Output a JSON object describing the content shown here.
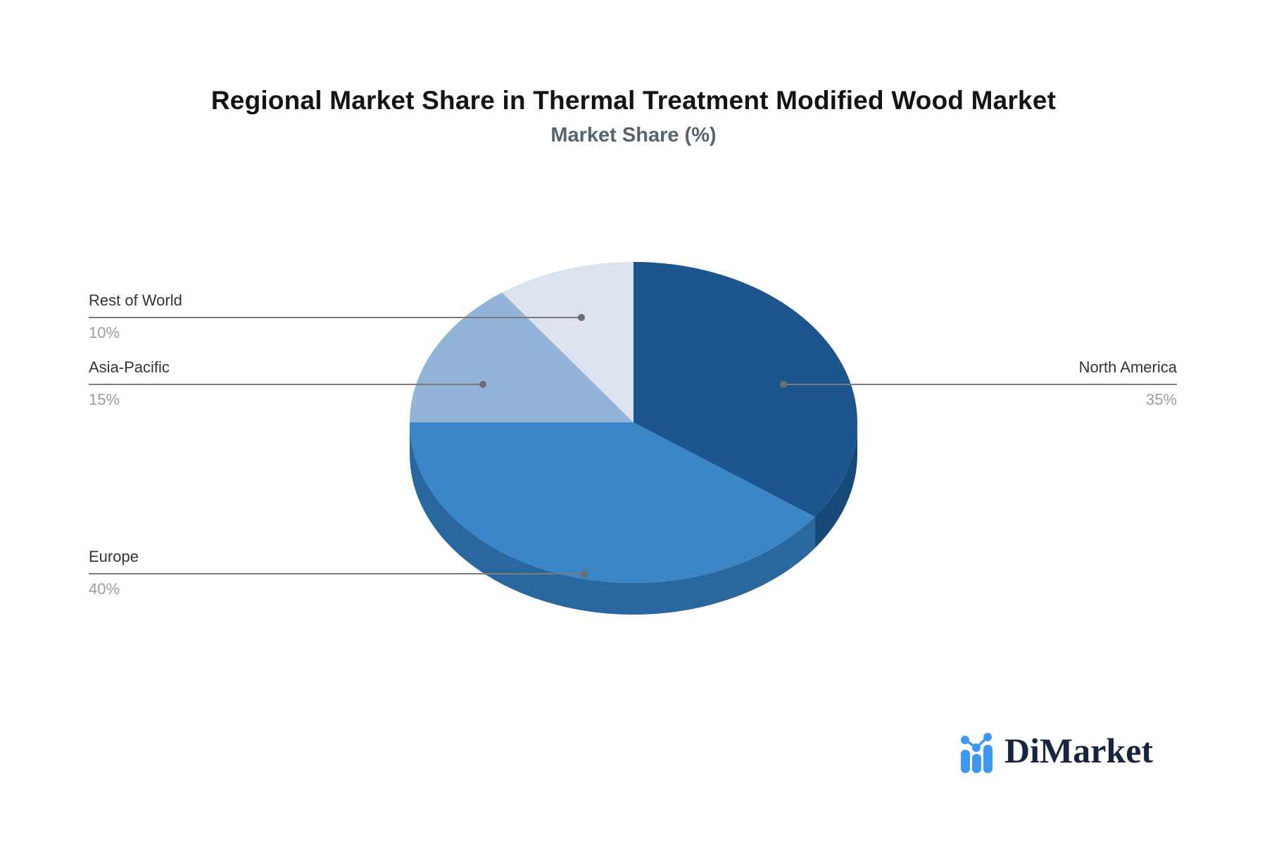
{
  "chart_data": {
    "type": "pie",
    "style": "3d-pie",
    "title": "Regional Market Share in Thermal Treatment Modified Wood Market",
    "subtitle": "Market Share (%)",
    "unit": "%",
    "start_angle_deg": 0,
    "direction": "clockwise",
    "legend_position": "callout-labels",
    "slices": [
      {
        "label": "North America",
        "value": 35,
        "display": "35%",
        "color": "#1d568e",
        "side_color": "#174a78"
      },
      {
        "label": "Europe",
        "value": 40,
        "display": "40%",
        "color": "#3b86c9",
        "side_color": "#2a679f"
      },
      {
        "label": "Asia-Pacific",
        "value": 15,
        "display": "15%",
        "color": "#92b4d8",
        "side_color": "#7396ba"
      },
      {
        "label": "Rest of World",
        "value": 10,
        "display": "10%",
        "color": "#dce3ee",
        "side_color": "#b8c3d3"
      }
    ]
  },
  "branding": {
    "logo_text": "DiMarket",
    "logo_icon": "bar-line-chart-icon",
    "logo_color": "#3e97f2",
    "logo_text_color": "#17253e"
  },
  "colors": {
    "leader_line": "#7c7c7c",
    "leader_dot": "#6d6d6d",
    "label_text": "#333333",
    "value_text": "#9b9b9b",
    "title_text": "#141414",
    "subtitle_text": "#57636e",
    "background": "#ffffff"
  }
}
